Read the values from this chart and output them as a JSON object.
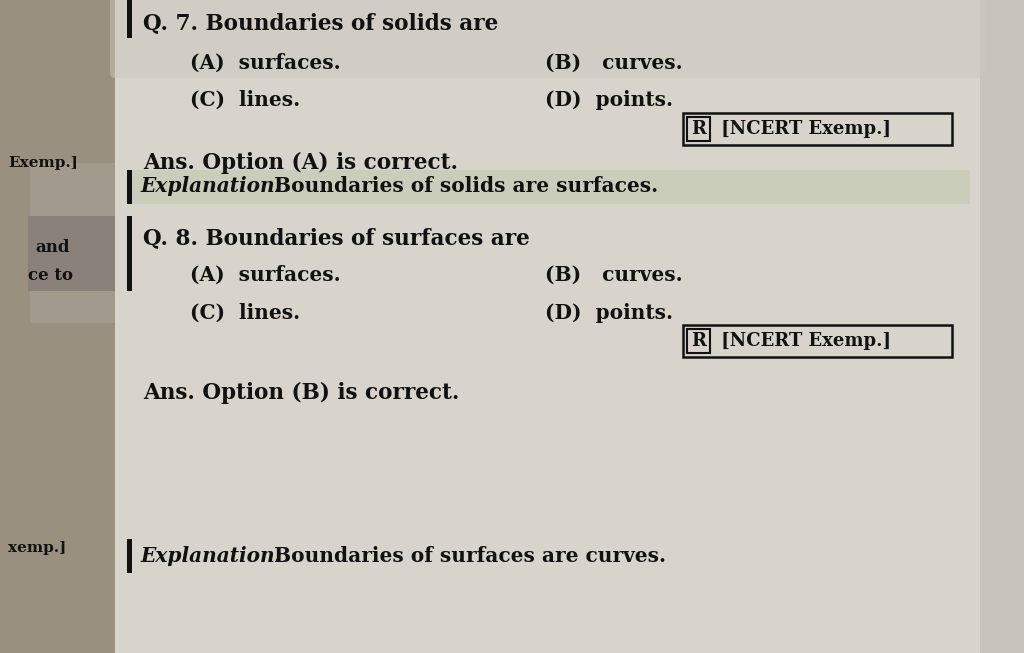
{
  "bg_outer": "#b8b0a0",
  "bg_left_bar": "#9a9080",
  "bg_page": "#d8d4cc",
  "bg_page_right": "#c8c4bc",
  "highlight_color": "#c8cdb8",
  "title_q7": "Q. 7. Boundaries of solids are",
  "q7_A": "(A)  surfaces.",
  "q7_B": "(B)   curves.",
  "q7_C": "(C)  lines.",
  "q7_D": "(D)  points.",
  "ncert_box_label": "R",
  "ncert_text": " [NCERT Exemp.]",
  "ans_q7": "Ans. Option (A) is correct.",
  "exemp_left": "Exemp.]",
  "explanation_italic": "Explanation:",
  "explanation_q7_rest": " Boundaries of solids are surfaces.",
  "title_q8": "Q. 8. Boundaries of surfaces are",
  "q8_A": "(A)  surfaces.",
  "q8_B": "(B)   curves.",
  "q8_C": "(C)  lines.",
  "q8_D": "(D)  points.",
  "ans_q8": "Ans. Option (B) is correct.",
  "and_text": "and",
  "ce_to_text": "ce to",
  "xemp_text": "xemp.]",
  "explanation_q8_italic": "Explanation:",
  "explanation_q8_rest": " Boundaries of surfaces are curves.",
  "font_size": 14.5,
  "font_size_small": 13
}
